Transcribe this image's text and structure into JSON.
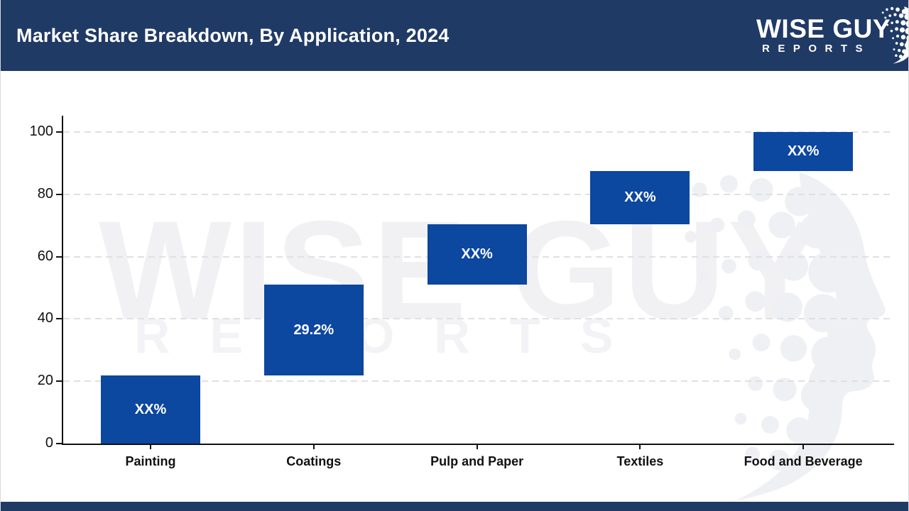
{
  "header": {
    "title": "Market Share Breakdown, By Application, 2024"
  },
  "logo": {
    "line1": "WISE GUY",
    "line2": "REPORTS",
    "head_icon": "dotted-head-profile-icon"
  },
  "watermark": {
    "line1": "WISE GUY",
    "line2": "REPORTS",
    "head_icon": "dotted-head-profile-icon"
  },
  "colors": {
    "header_navy": "#203a66",
    "footer_navy": "#203a66",
    "bar_blue": "#0c47a0",
    "bar_label_text": "#ffffff",
    "axis_black": "#111111",
    "gridline_gray": "#e0e0e3",
    "watermark_gray": "#f1f1f4"
  },
  "chart_data": {
    "type": "bar",
    "subtype": "waterfall",
    "title": "Market Share Breakdown, By Application, 2024",
    "categories": [
      "Painting",
      "Coatings",
      "Pulp and Paper",
      "Textiles",
      "Food and Beverage"
    ],
    "series": [
      {
        "name": "Market Share %",
        "values": [
          21.8,
          29.2,
          19.5,
          17.0,
          12.5
        ],
        "starts": [
          0,
          21.8,
          51.0,
          70.5,
          87.5
        ],
        "ends": [
          21.8,
          51.0,
          70.5,
          87.5,
          100
        ]
      }
    ],
    "bar_labels": [
      "XX%",
      "29.2%",
      "XX%",
      "XX%",
      "XX%"
    ],
    "xlabel": "",
    "ylabel": "",
    "y_ticks": [
      0,
      20,
      40,
      60,
      80,
      100
    ],
    "ylim": [
      0,
      105
    ],
    "grid": "horizontal-dashed",
    "legend": "none",
    "bar_color": "#0c47a0"
  }
}
